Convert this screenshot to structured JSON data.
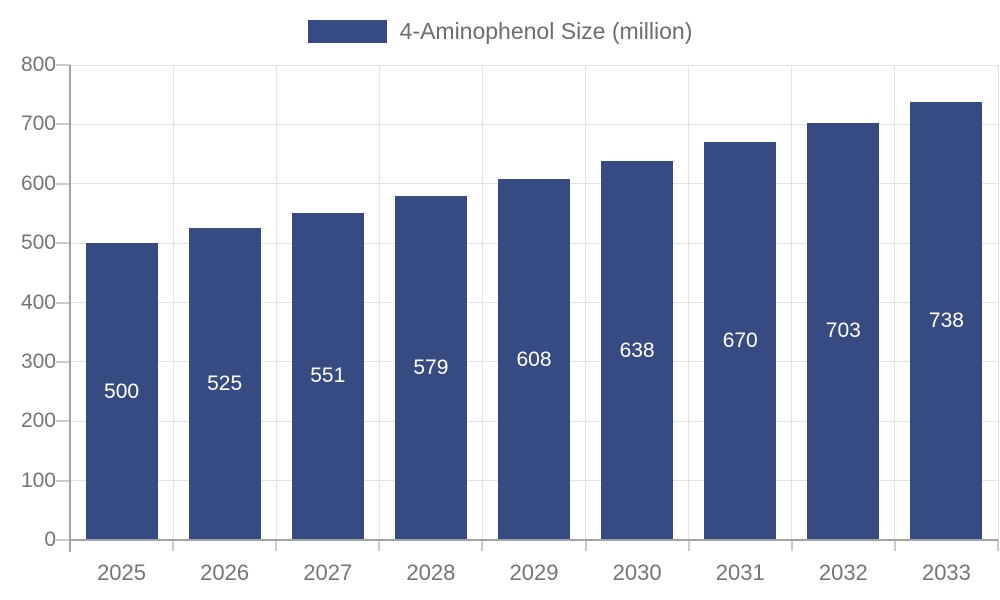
{
  "legend": {
    "label": "4-Aminophenol Size (million)",
    "swatch_color": "#364b82"
  },
  "chart_data": {
    "type": "bar",
    "categories": [
      "2025",
      "2026",
      "2027",
      "2028",
      "2029",
      "2030",
      "2031",
      "2032",
      "2033"
    ],
    "values": [
      500,
      525,
      551,
      579,
      608,
      638,
      670,
      703,
      738
    ],
    "title": "4-Aminophenol Size (million)",
    "xlabel": "",
    "ylabel": "",
    "ylim": [
      0,
      800
    ],
    "ytick_step": 100,
    "yticks": [
      0,
      100,
      200,
      300,
      400,
      500,
      600,
      700,
      800
    ],
    "grid": true,
    "legend_position": "top-center",
    "bar_color": "#364b82",
    "value_label_color": "#ffffff",
    "value_label_position": "inside-center",
    "axis_text_color": "#757575",
    "gridline_color": "#e2e2e2",
    "axis_line_color": "#a2a2a2"
  }
}
